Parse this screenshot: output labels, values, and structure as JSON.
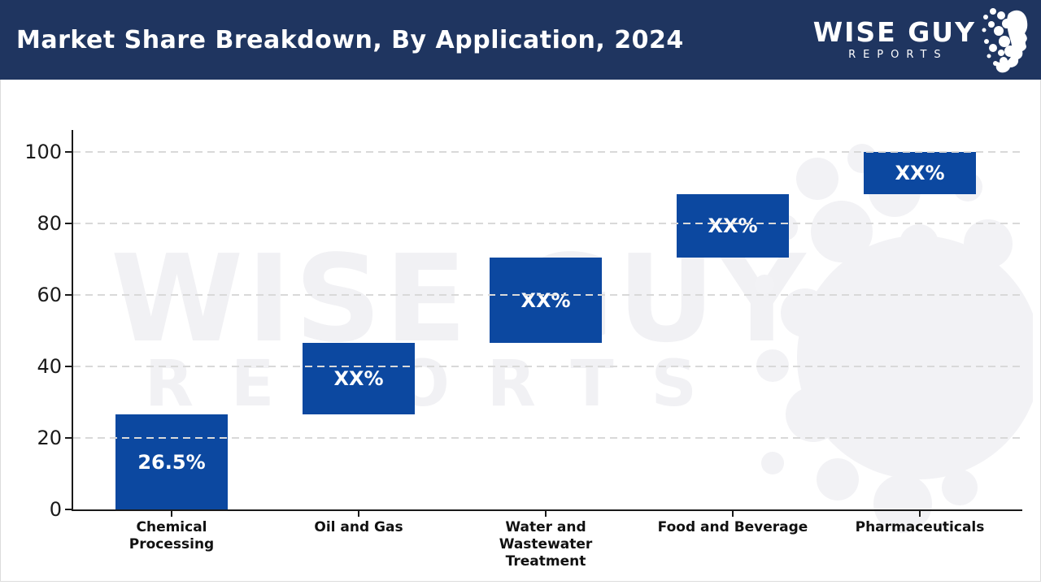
{
  "header": {
    "title": "Market Share Breakdown, By Application, 2024",
    "logo": {
      "line1": "WISE GUY",
      "line2": "REPORTS"
    }
  },
  "watermark": {
    "line1": "WISE GUY",
    "line2": "REPORTS"
  },
  "colors": {
    "header_bg": "#1f3560",
    "bar": "#0c48a0",
    "grid": "#d9d9d9",
    "axis": "#1a1a1a",
    "watermark": "#f1f1f4",
    "bar_label_text": "#ffffff"
  },
  "chart_data": {
    "type": "bar",
    "subtype": "waterfall",
    "title": "Market Share Breakdown, By Application, 2024",
    "xlabel": "",
    "ylabel": "",
    "categories": [
      "Chemical\nProcessing",
      "Oil and Gas",
      "Water and\nWastewater\nTreatment",
      "Food and Beverage",
      "Pharmaceuticals"
    ],
    "segments": [
      {
        "category": "Chemical Processing",
        "start": 0,
        "end": 26.5,
        "label": "26.5%"
      },
      {
        "category": "Oil and Gas",
        "start": 26.5,
        "end": 46.5,
        "label": "XX%"
      },
      {
        "category": "Water and Wastewater Treatment",
        "start": 46.5,
        "end": 70.5,
        "label": "XX%"
      },
      {
        "category": "Food and Beverage",
        "start": 70.5,
        "end": 88.2,
        "label": "XX%"
      },
      {
        "category": "Pharmaceuticals",
        "start": 88.2,
        "end": 100,
        "label": "XX%"
      }
    ],
    "yticks": [
      0,
      20,
      40,
      60,
      80,
      100
    ],
    "ylim": [
      0,
      106
    ],
    "grid": "horizontal-dashed",
    "legend": "none"
  }
}
